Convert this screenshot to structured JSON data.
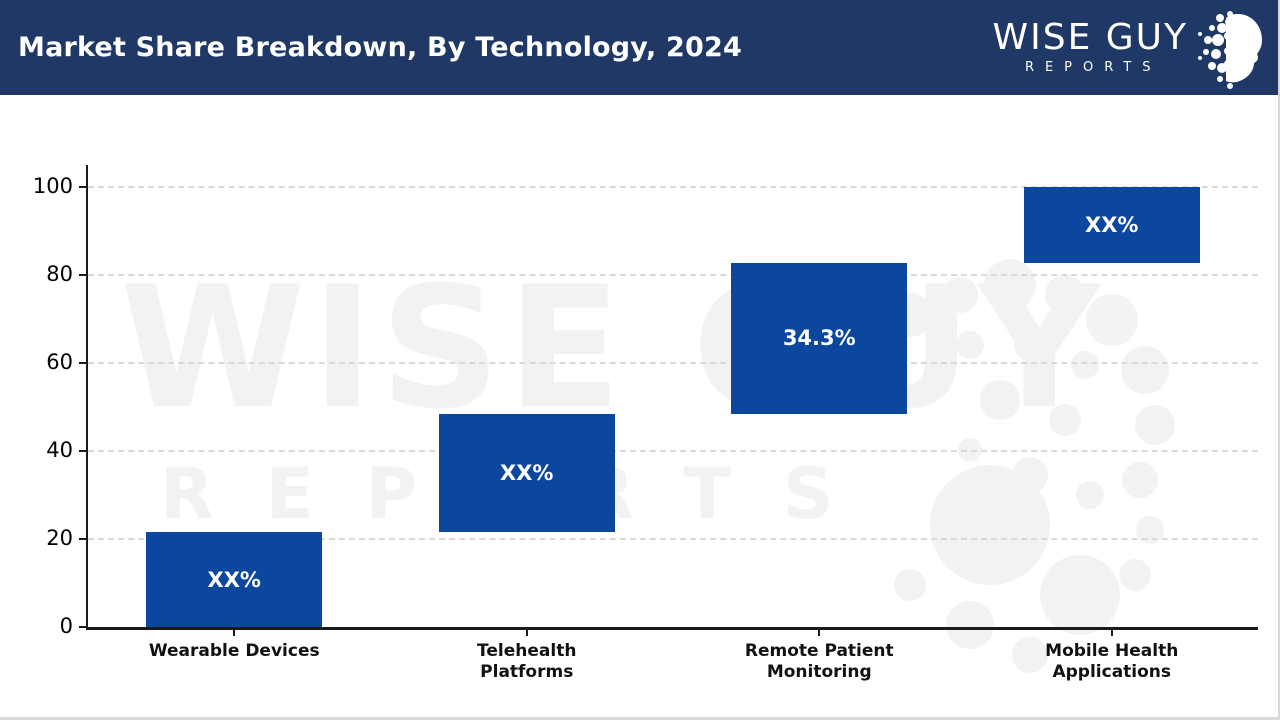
{
  "header": {
    "title": "Market Share Breakdown, By Technology, 2024",
    "logo": {
      "line1": "WISE GUY",
      "line2": "REPORTS"
    }
  },
  "watermark": {
    "line1": "WISE GUY",
    "line2": "REPORTS"
  },
  "chart_data": {
    "type": "bar",
    "variant": "floating-waterfall-segments",
    "title": "Market Share Breakdown, By Technology, 2024",
    "xlabel": "",
    "ylabel": "",
    "categories": [
      "Wearable Devices",
      "Telehealth\nPlatforms",
      "Remote Patient\nMonitoring",
      "Mobile Health\nApplications"
    ],
    "bars": [
      {
        "category": "Wearable Devices",
        "start": 0,
        "end": 21.5,
        "label": "XX%"
      },
      {
        "category": "Telehealth Platforms",
        "start": 21.5,
        "end": 48.5,
        "label": "XX%"
      },
      {
        "category": "Remote Patient Monitoring",
        "start": 48.5,
        "end": 82.8,
        "label": "34.3%"
      },
      {
        "category": "Mobile Health Applications",
        "start": 82.8,
        "end": 100,
        "label": "XX%"
      }
    ],
    "yticks": [
      0,
      20,
      40,
      60,
      80,
      100
    ],
    "ylim": [
      0,
      105
    ],
    "grid": {
      "horizontal": true,
      "style": "dashed",
      "color": "#d9d9d9"
    },
    "legend": null,
    "bar_color": "#0b479e",
    "bar_label_color": "#ffffff",
    "axis_color": "#1a1a1a",
    "header_color": "#1f3866",
    "watermark_color": "#f2f2f2"
  }
}
